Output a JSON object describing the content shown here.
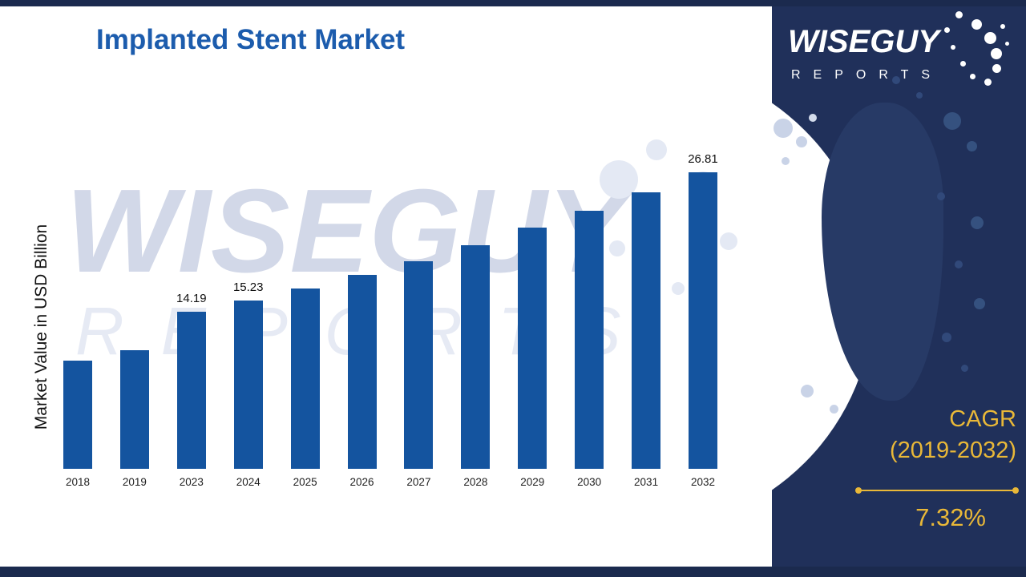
{
  "header": {
    "title": "Implanted Stent Market"
  },
  "chart": {
    "ylabel": "Market Value in USD Billion"
  },
  "watermark": {
    "line1": "WISEGUY",
    "line2": "REPORTS"
  },
  "logo": {
    "line1": "WISEGUY",
    "line2": "REPORTS"
  },
  "cagr": {
    "label": "CAGR",
    "range": "(2019-2032)",
    "value": "7.32%"
  },
  "colors": {
    "bar": "#14549f",
    "title": "#1c5cad",
    "panel": "#20305a",
    "accent_gold": "#e9b838",
    "navy_strip": "#1b2a4e"
  },
  "chart_data": {
    "type": "bar",
    "title": "Implanted Stent Market",
    "xlabel": "",
    "ylabel": "Market Value in USD Billion",
    "categories": [
      "2018",
      "2019",
      "2023",
      "2024",
      "2025",
      "2026",
      "2027",
      "2028",
      "2029",
      "2030",
      "2031",
      "2032"
    ],
    "values": [
      9.8,
      10.7,
      14.19,
      15.23,
      16.3,
      17.5,
      18.8,
      20.2,
      21.8,
      23.3,
      25.0,
      26.81
    ],
    "point_labels": [
      "",
      "",
      "14.19",
      "15.23",
      "",
      "",
      "",
      "",
      "",
      "",
      "",
      "26.81"
    ],
    "ylim": [
      0,
      30
    ],
    "grid": false,
    "legend": false
  }
}
